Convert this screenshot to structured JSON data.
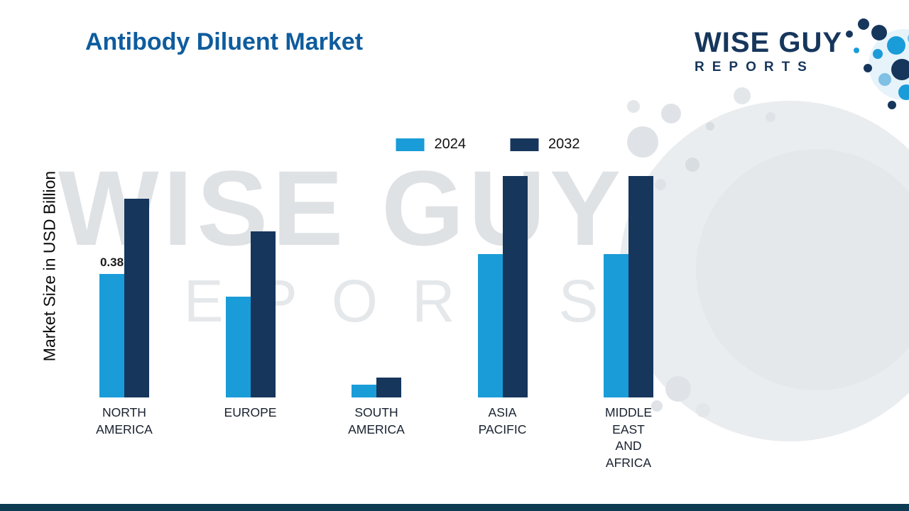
{
  "title": "Antibody Diluent Market",
  "colors": {
    "title": "#0e5c9e",
    "bottom_bar": "#0c3b52",
    "logo_navy": "#16365c",
    "series_2024": "#1a9cd8",
    "series_2032": "#16365c"
  },
  "logo": {
    "name": "WISE GUY",
    "sub": "REPORTS"
  },
  "watermark": {
    "name": "WISE GUY",
    "sub": "REPORTS"
  },
  "chart_data": {
    "type": "bar",
    "title": "Antibody Diluent Market",
    "xlabel": "",
    "ylabel": "Market Size in USD Billion",
    "categories": [
      "NORTH AMERICA",
      "EUROPE",
      "SOUTH AMERICA",
      "ASIA PACIFIC",
      "MIDDLE EAST AND AFRICA"
    ],
    "category_display": [
      "NORTH\nAMERICA",
      "EUROPE",
      "SOUTH\nAMERICA",
      "ASIA\nPACIFIC",
      "MIDDLE\nEAST\nAND\nAFRICA"
    ],
    "series": [
      {
        "name": "2024",
        "color": "#1a9cd8",
        "values": [
          0.38,
          0.31,
          0.04,
          0.44,
          0.44
        ]
      },
      {
        "name": "2032",
        "color": "#16365c",
        "values": [
          0.61,
          0.51,
          0.06,
          0.68,
          0.68
        ]
      }
    ],
    "data_labels": [
      {
        "category": "NORTH AMERICA",
        "series": "2024",
        "text": "0.38"
      }
    ],
    "ylim": [
      0,
      0.72
    ],
    "grid": false,
    "legend_position": "top"
  }
}
